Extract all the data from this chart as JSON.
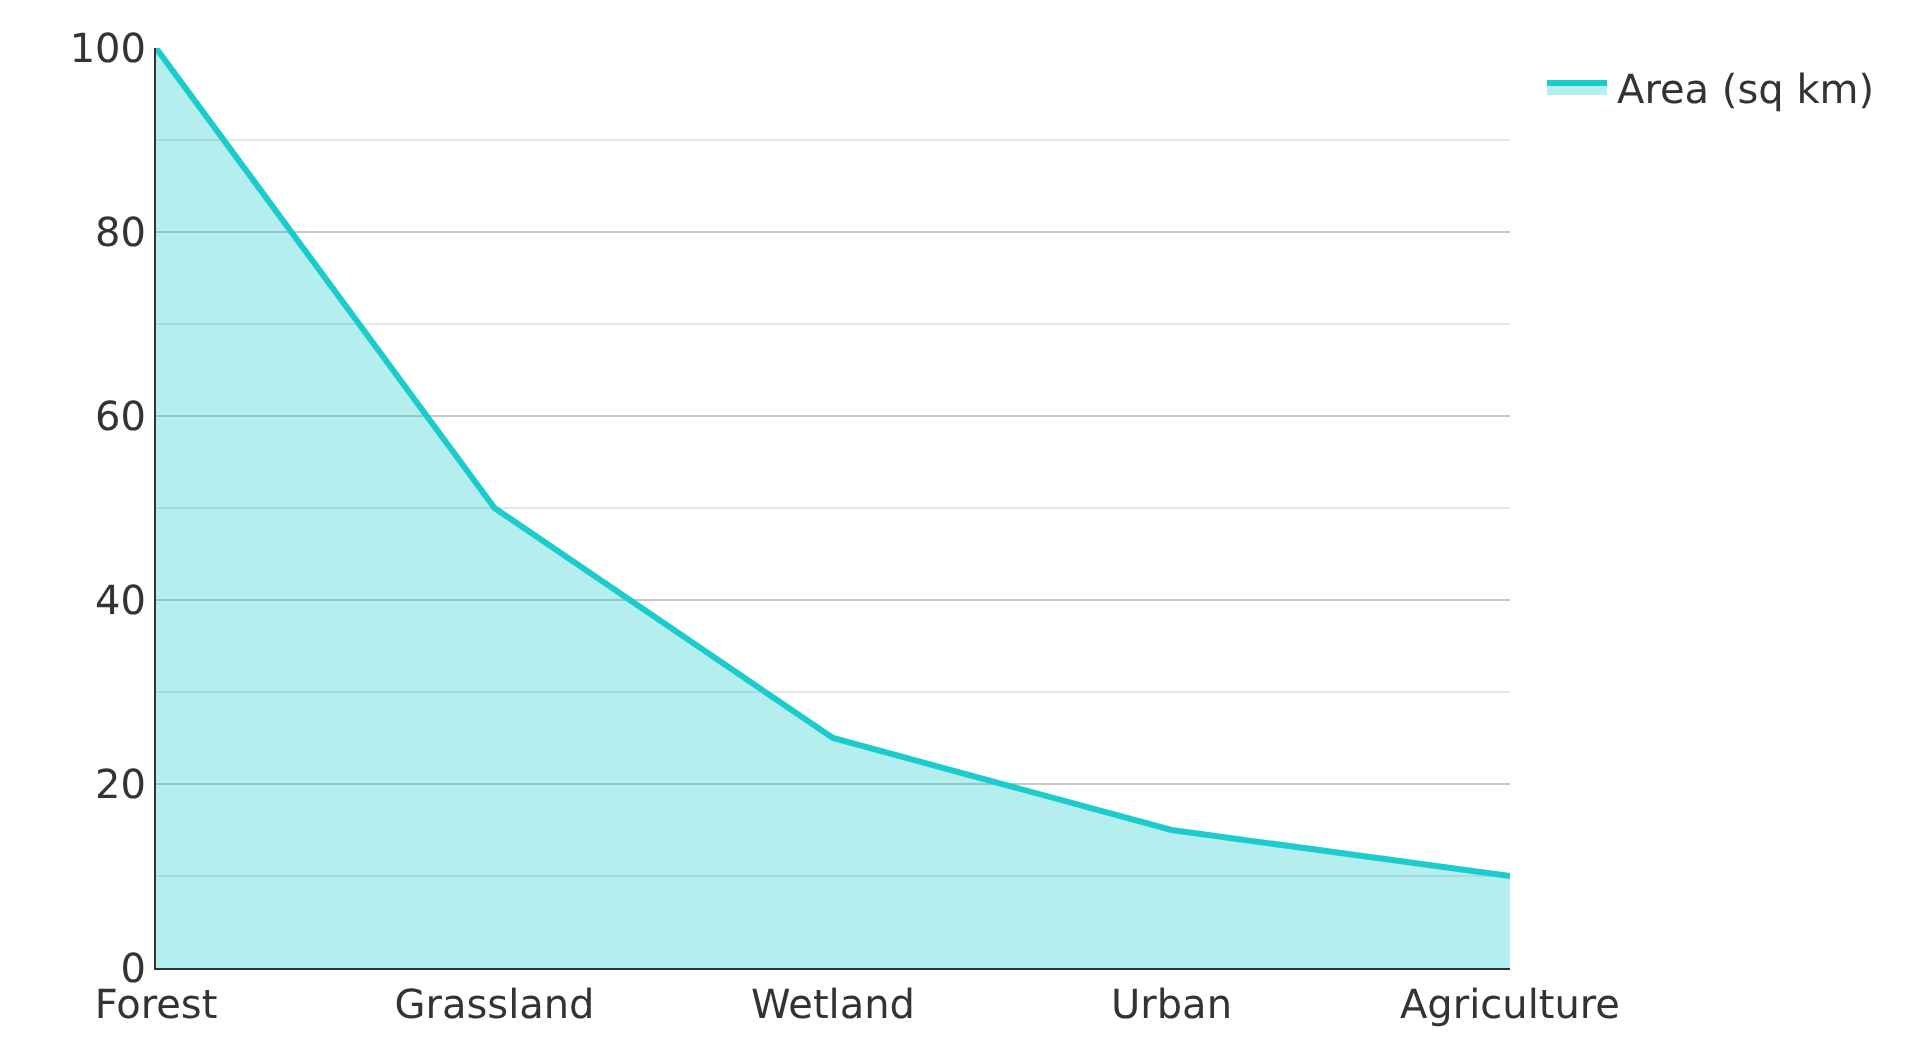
{
  "chart_data": {
    "type": "area",
    "categories": [
      "Forest",
      "Grassland",
      "Wetland",
      "Urban",
      "Agriculture"
    ],
    "series": [
      {
        "name": "Area (sq km)",
        "color": "#1ccbcb",
        "values": [
          100,
          50,
          25,
          15,
          10
        ]
      }
    ],
    "ylim": [
      0,
      100
    ],
    "yticks": [
      0,
      20,
      40,
      60,
      80,
      100
    ],
    "grid": "y",
    "legend": "top right"
  }
}
